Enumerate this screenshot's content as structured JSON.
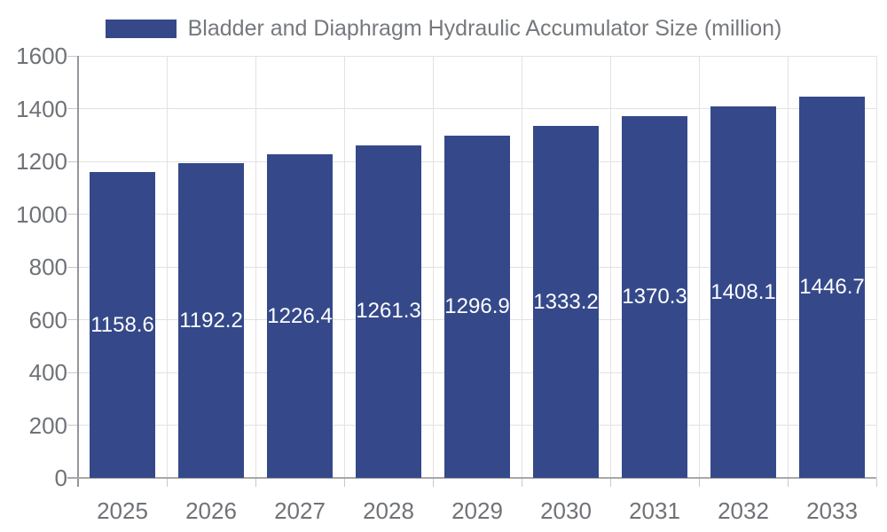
{
  "chart_data": {
    "type": "bar",
    "title": "",
    "legend_label": "Bladder and Diaphragm Hydraulic Accumulator Size (million)",
    "categories": [
      "2025",
      "2026",
      "2027",
      "2028",
      "2029",
      "2030",
      "2031",
      "2032",
      "2033"
    ],
    "values": [
      1158.6,
      1192.2,
      1226.4,
      1261.3,
      1296.9,
      1333.2,
      1370.3,
      1408.1,
      1446.7
    ],
    "value_labels": [
      "1158.6",
      "1192.2",
      "1226.4",
      "1261.3",
      "1296.9",
      "1333.2",
      "1370.3",
      "1408.1",
      "1446.7"
    ],
    "yticks": [
      0,
      200,
      400,
      600,
      800,
      1000,
      1200,
      1400,
      1600
    ],
    "ylim": [
      0,
      1600
    ],
    "xlabel": "",
    "ylabel": "",
    "grid": true,
    "legend_position": "top-center",
    "colors": {
      "bar": "#35498A",
      "bar_value_text": "#FFFFFF",
      "axis_text": "#6F7277",
      "legend_text": "#75787D",
      "gridline": "#E2E2E2",
      "axis_line": "#A8A8A8",
      "background": "#FFFFFF"
    }
  }
}
